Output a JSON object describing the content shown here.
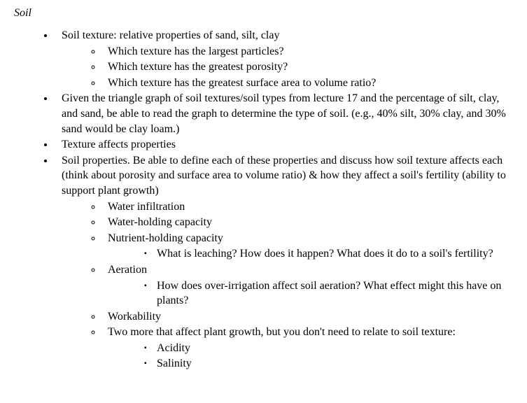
{
  "title": "Soil",
  "items": [
    {
      "text": "Soil texture: relative properties of sand, silt, clay",
      "children": [
        {
          "text": "Which texture has the largest particles?"
        },
        {
          "text": "Which texture has the greatest porosity?"
        },
        {
          "text": "Which texture has the greatest surface area to volume ratio?"
        }
      ]
    },
    {
      "text": "Given the triangle graph of soil textures/soil types from lecture 17 and the percentage of silt, clay, and sand, be able to read the graph to determine the type of soil. (e.g., 40% silt, 30% clay, and 30% sand would be clay loam.)"
    },
    {
      "text": "Texture affects properties"
    },
    {
      "text": "Soil properties. Be able to define each of these properties and discuss how soil texture affects each (think about porosity and surface area to volume ratio) & how they affect a soil's fertility (ability to support plant growth)",
      "children": [
        {
          "text": "Water infiltration"
        },
        {
          "text": "Water-holding capacity"
        },
        {
          "text": "Nutrient-holding capacity",
          "children": [
            {
              "text": "What is leaching? How does it happen? What does it do to a soil's fertility?"
            }
          ]
        },
        {
          "text": "Aeration",
          "children": [
            {
              "text": "How does over-irrigation affect soil aeration? What effect might this have on plants?"
            }
          ]
        },
        {
          "text": "Workability"
        },
        {
          "text": "Two more that affect plant growth, but you don't need to relate to soil texture:",
          "children": [
            {
              "text": "Acidity"
            },
            {
              "text": "Salinity"
            }
          ]
        }
      ]
    }
  ]
}
